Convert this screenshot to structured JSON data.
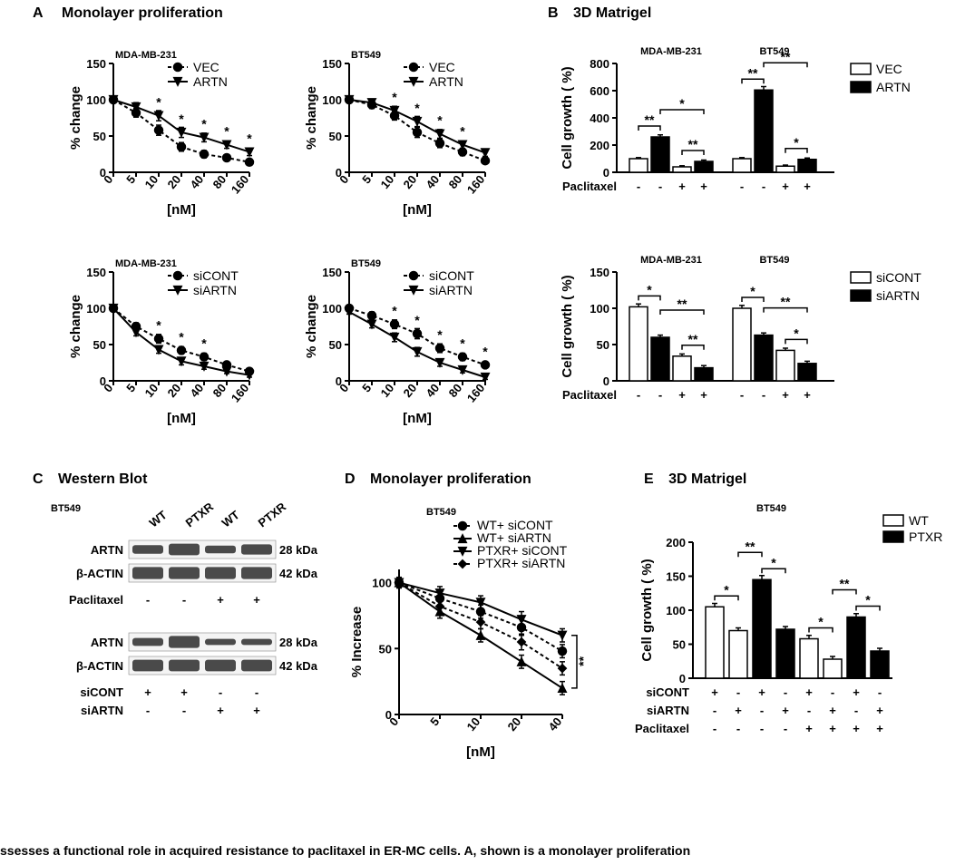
{
  "panelA": {
    "label": "A",
    "title": "Monolayer proliferation",
    "ylabel": "% change",
    "xlabel": "[nM]",
    "xticks": [
      "0",
      "5",
      "10",
      "20",
      "40",
      "80",
      "160"
    ],
    "yticks": [
      0,
      50,
      100,
      150
    ],
    "ylim": [
      0,
      150
    ],
    "charts": [
      {
        "subtitle": "MDA-MB-231",
        "legend": [
          "VEC",
          "ARTN"
        ],
        "series": [
          {
            "name": "VEC",
            "dash": "4,3",
            "marker": "circle",
            "y": [
              100,
              82,
              58,
              35,
              25,
              20,
              14
            ],
            "err": [
              4,
              6,
              7,
              6,
              5,
              4,
              4
            ],
            "color": "#000000"
          },
          {
            "name": "ARTN",
            "dash": "none",
            "marker": "down",
            "y": [
              100,
              90,
              78,
              55,
              48,
              38,
              28
            ],
            "err": [
              4,
              6,
              7,
              7,
              6,
              5,
              5
            ],
            "color": "#000000"
          }
        ],
        "sig_idx": [
          2,
          3,
          4,
          5,
          6
        ]
      },
      {
        "subtitle": "BT549",
        "legend": [
          "VEC",
          "ARTN"
        ],
        "series": [
          {
            "name": "VEC",
            "dash": "4,3",
            "marker": "circle",
            "y": [
              100,
              93,
              78,
              55,
              40,
              28,
              16
            ],
            "err": [
              3,
              5,
              6,
              7,
              6,
              5,
              4
            ],
            "color": "#000000"
          },
          {
            "name": "ARTN",
            "dash": "none",
            "marker": "down",
            "y": [
              100,
              96,
              85,
              70,
              53,
              38,
              27
            ],
            "err": [
              3,
              5,
              6,
              7,
              6,
              5,
              5
            ],
            "color": "#000000"
          }
        ],
        "sig_idx": [
          2,
          3,
          4,
          5
        ]
      },
      {
        "subtitle": "MDA-MB-231",
        "legend": [
          "siCONT",
          "siARTN"
        ],
        "series": [
          {
            "name": "siCONT",
            "dash": "4,3",
            "marker": "circle",
            "y": [
              100,
              75,
              58,
              42,
              33,
              22,
              13
            ],
            "err": [
              3,
              5,
              6,
              5,
              5,
              4,
              3
            ],
            "color": "#000000"
          },
          {
            "name": "siARTN",
            "dash": "none",
            "marker": "down",
            "y": [
              100,
              67,
              43,
              27,
              20,
              13,
              8
            ],
            "err": [
              3,
              5,
              5,
              5,
              4,
              3,
              3
            ],
            "color": "#000000"
          }
        ],
        "sig_idx": [
          2,
          3,
          4
        ]
      },
      {
        "subtitle": "BT549",
        "legend": [
          "siCONT",
          "siARTN"
        ],
        "series": [
          {
            "name": "siCONT",
            "dash": "4,3",
            "marker": "circle",
            "y": [
              100,
              90,
              78,
              65,
              45,
              33,
              22
            ],
            "err": [
              3,
              5,
              6,
              7,
              6,
              5,
              4
            ],
            "color": "#000000"
          },
          {
            "name": "siARTN",
            "dash": "none",
            "marker": "down",
            "y": [
              95,
              78,
              60,
              40,
              25,
              15,
              5
            ],
            "err": [
              3,
              5,
              6,
              6,
              5,
              4,
              3
            ],
            "color": "#000000"
          }
        ],
        "sig_idx": [
          2,
          3,
          4,
          5,
          6
        ]
      }
    ]
  },
  "panelB": {
    "label": "B",
    "title": "3D Matrigel",
    "ylabel": "Cell growth ( %)",
    "xrow_label": "Paclitaxel",
    "xrow_values": [
      "-",
      "-",
      "+",
      "+",
      "-",
      "-",
      "+",
      "+"
    ],
    "charts": [
      {
        "subtitles": [
          "MDA-MB-231",
          "BT549"
        ],
        "legend": [
          "VEC",
          "ARTN"
        ],
        "yticks": [
          0,
          200,
          400,
          600,
          800
        ],
        "ylim": [
          0,
          800
        ],
        "bars": [
          100,
          260,
          40,
          80,
          100,
          605,
          45,
          95
        ],
        "err": [
          8,
          15,
          8,
          10,
          8,
          25,
          8,
          10
        ],
        "fills": [
          "#ffffff",
          "#000000",
          "#ffffff",
          "#000000",
          "#ffffff",
          "#000000",
          "#ffffff",
          "#000000"
        ],
        "sigs": [
          {
            "type": "**",
            "span": [
              0,
              1
            ]
          },
          {
            "type": "*",
            "span": [
              1,
              3
            ],
            "high": true
          },
          {
            "type": "**",
            "span": [
              2,
              3
            ]
          },
          {
            "type": "**",
            "span": [
              4,
              5
            ]
          },
          {
            "type": "**",
            "span": [
              5,
              7
            ],
            "high": true
          },
          {
            "type": "*",
            "span": [
              6,
              7
            ]
          }
        ]
      },
      {
        "subtitles": [
          "MDA-MB-231",
          "BT549"
        ],
        "legend": [
          "siCONT",
          "siARTN"
        ],
        "yticks": [
          0,
          50,
          100,
          150
        ],
        "ylim": [
          0,
          150
        ],
        "bars": [
          102,
          60,
          34,
          18,
          100,
          63,
          42,
          24
        ],
        "err": [
          4,
          3,
          3,
          3,
          4,
          3,
          3,
          3
        ],
        "fills": [
          "#ffffff",
          "#000000",
          "#ffffff",
          "#000000",
          "#ffffff",
          "#000000",
          "#ffffff",
          "#000000"
        ],
        "sigs": [
          {
            "type": "*",
            "span": [
              0,
              1
            ]
          },
          {
            "type": "**",
            "span": [
              1,
              3
            ],
            "high": true
          },
          {
            "type": "**",
            "span": [
              2,
              3
            ]
          },
          {
            "type": "*",
            "span": [
              4,
              5
            ]
          },
          {
            "type": "**",
            "span": [
              5,
              7
            ],
            "high": true
          },
          {
            "type": "*",
            "span": [
              6,
              7
            ]
          }
        ]
      }
    ]
  },
  "panelC": {
    "label": "C",
    "title": "Western Blot",
    "cell": "BT549",
    "lanes_top": [
      "WT",
      "PTXR",
      "WT",
      "PTXR"
    ],
    "rows": [
      {
        "name": "ARTN",
        "kda": "28 kDa",
        "intens": [
          0.45,
          0.85,
          0.3,
          0.65
        ]
      },
      {
        "name": "β-ACTIN",
        "kda": "42 kDa",
        "intens": [
          0.9,
          0.9,
          0.9,
          0.9
        ]
      }
    ],
    "row_label": "Paclitaxel",
    "row_values": [
      "-",
      "-",
      "+",
      "+"
    ],
    "rows2": [
      {
        "name": "ARTN",
        "kda": "28 kDa",
        "intens": [
          0.35,
          0.9,
          0.1,
          0.1
        ]
      },
      {
        "name": "β-ACTIN",
        "kda": "42 kDa",
        "intens": [
          0.85,
          0.85,
          0.85,
          0.85
        ]
      }
    ],
    "si_labels": [
      "siCONT",
      "siARTN"
    ],
    "si_values": [
      [
        "+",
        "+",
        "-",
        "-"
      ],
      [
        "-",
        "-",
        "+",
        "+"
      ]
    ]
  },
  "panelD": {
    "label": "D",
    "title": "Monolayer proliferation",
    "subtitle": "BT549",
    "ylabel": "% Increase",
    "xlabel": "[nM]",
    "xticks": [
      "0",
      "5",
      "10",
      "20",
      "40"
    ],
    "yticks": [
      0,
      50,
      100
    ],
    "ylim": [
      0,
      110
    ],
    "legend": [
      "WT+ siCONT",
      "WT+ siARTN",
      "PTXR+ siCONT",
      "PTXR+ siARTN"
    ],
    "series": [
      {
        "dash": "4,3",
        "marker": "circle",
        "y": [
          100,
          88,
          78,
          66,
          48
        ],
        "err": [
          4,
          5,
          5,
          6,
          5
        ]
      },
      {
        "dash": "none",
        "marker": "up",
        "y": [
          100,
          78,
          60,
          40,
          20
        ],
        "err": [
          4,
          5,
          5,
          5,
          5
        ]
      },
      {
        "dash": "none",
        "marker": "down",
        "y": [
          100,
          92,
          85,
          72,
          60
        ],
        "err": [
          4,
          5,
          5,
          6,
          5
        ]
      },
      {
        "dash": "4,3",
        "marker": "diamond",
        "y": [
          100,
          82,
          70,
          55,
          35
        ],
        "err": [
          4,
          5,
          5,
          6,
          5
        ]
      }
    ],
    "bracket_sig": "**"
  },
  "panelE": {
    "label": "E",
    "title": "3D Matrigel",
    "subtitle": "BT549",
    "ylabel": "Cell growth ( %)",
    "yticks": [
      0,
      50,
      100,
      150,
      200
    ],
    "ylim": [
      0,
      200
    ],
    "legend": [
      "WT",
      "PTXR"
    ],
    "bars": [
      105,
      70,
      145,
      72,
      58,
      28,
      90,
      40
    ],
    "err": [
      5,
      4,
      6,
      4,
      5,
      4,
      5,
      4
    ],
    "fills": [
      "#ffffff",
      "#ffffff",
      "#000000",
      "#000000",
      "#ffffff",
      "#ffffff",
      "#000000",
      "#000000"
    ],
    "sigs": [
      {
        "type": "*",
        "span": [
          0,
          1
        ]
      },
      {
        "type": "**",
        "span": [
          1,
          2
        ],
        "high": true
      },
      {
        "type": "*",
        "span": [
          2,
          3
        ]
      },
      {
        "type": "*",
        "span": [
          4,
          5
        ]
      },
      {
        "type": "**",
        "span": [
          5,
          6
        ],
        "high": true
      },
      {
        "type": "*",
        "span": [
          6,
          7
        ]
      }
    ],
    "row_labels": [
      "siCONT",
      "siARTN",
      "Paclitaxel"
    ],
    "row_values": [
      [
        "+",
        "-",
        "+",
        "-",
        "+",
        "-",
        "+",
        "-"
      ],
      [
        "-",
        "+",
        "-",
        "+",
        "-",
        "+",
        "-",
        "+"
      ],
      [
        "-",
        "-",
        "-",
        "-",
        "+",
        "+",
        "+",
        "+"
      ]
    ]
  },
  "caption": "ssesses a functional role in acquired resistance to paclitaxel in ER-MC cells. A, shown is a monolayer proliferation",
  "colors": {
    "black": "#000000",
    "white": "#ffffff",
    "band": "#4a4a4a"
  }
}
